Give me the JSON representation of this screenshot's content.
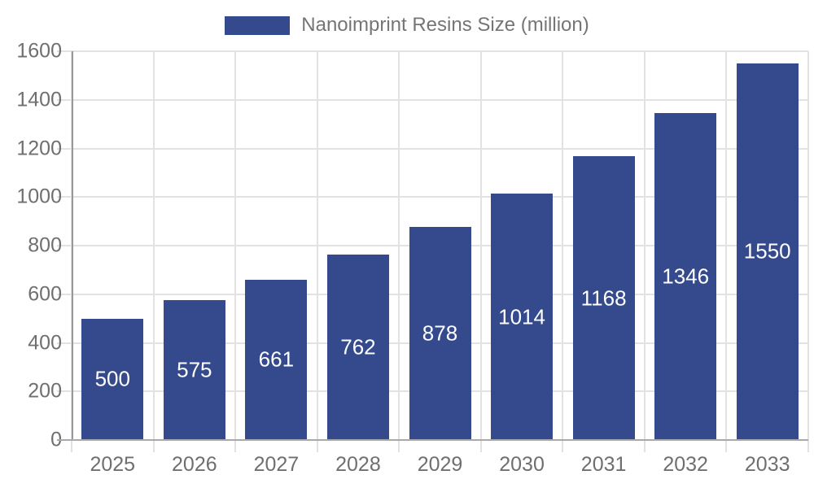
{
  "legend": {
    "label": "Nanoimprint Resins Size (million)"
  },
  "chart_data": {
    "type": "bar",
    "title": "Nanoimprint Resins Size (million)",
    "categories": [
      "2025",
      "2026",
      "2027",
      "2028",
      "2029",
      "2030",
      "2031",
      "2032",
      "2033"
    ],
    "values": [
      500,
      575,
      661,
      762,
      878,
      1014,
      1168,
      1346,
      1550
    ],
    "xlabel": "",
    "ylabel": "",
    "ylim": [
      0,
      1600
    ],
    "ytick_step": 200,
    "grid": true,
    "legend_position": "top-center",
    "colors": {
      "bar": "#354A8C",
      "bar_value_label": "#ffffff",
      "tick_label": "#6f6f6f",
      "legend_text": "#757575",
      "gridline": "#e2e2e2",
      "y_axis_line": "#97979c",
      "x_axis_line": "#a8a8ad"
    }
  }
}
